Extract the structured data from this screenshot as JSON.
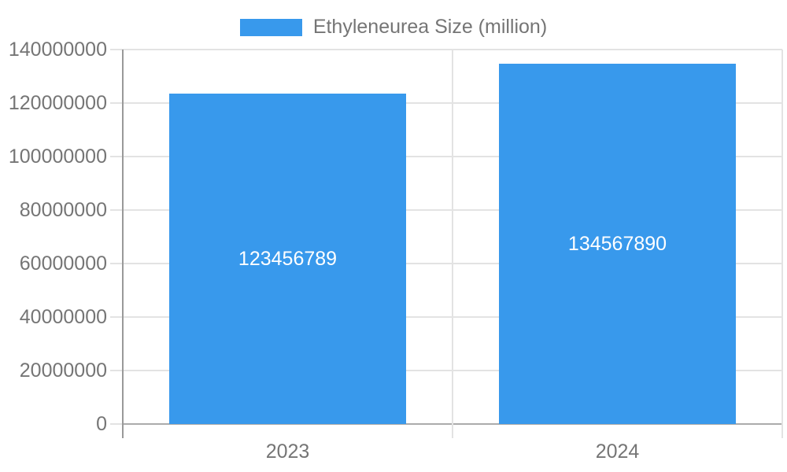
{
  "legend": {
    "label": "Ethyleneurea Size (million)"
  },
  "chart_data": {
    "type": "bar",
    "title": "",
    "categories": [
      "2023",
      "2024"
    ],
    "series": [
      {
        "name": "Ethyleneurea Size (million)",
        "values": [
          123456789,
          134567890
        ]
      }
    ],
    "bar_labels": [
      "123456789",
      "134567890"
    ],
    "xlabel": "",
    "ylabel": "",
    "ylim": [
      0,
      140000000
    ],
    "ytick_interval": 20000000,
    "ytick_labels": [
      "0",
      "20000000",
      "40000000",
      "60000000",
      "80000000",
      "100000000",
      "120000000",
      "140000000"
    ],
    "grid": true,
    "legend_position": "top"
  },
  "colors": {
    "bar": "#3899EC",
    "grid": "#E3E3E3",
    "axis_line": "#999999",
    "baseline": "#ABABAB",
    "text": "#757575",
    "bar_label": "#FFFFFF",
    "background": "#FFFFFF"
  }
}
